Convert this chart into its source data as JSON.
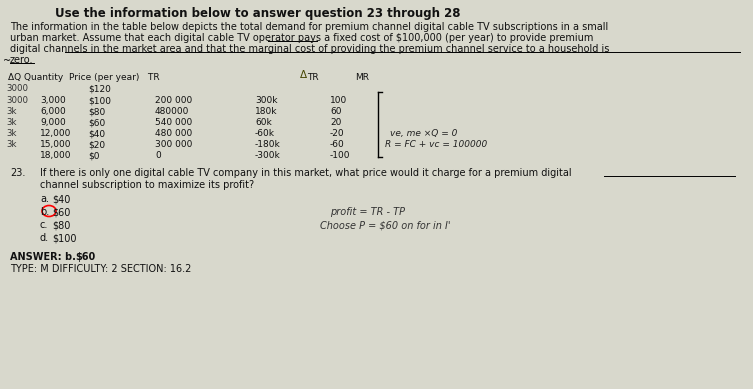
{
  "title": "Use the information below to answer question 23 through 28",
  "para1": "The information in the table below depicts the total demand for premium channel digital cable TV subscriptions in a small",
  "para2": "urban market. Assume that each digital cable TV operator pays a fixed cost of $100,000 (per year) to provide premium",
  "para3": "digital channels in the market area and that the marginal cost of providing the premium channel service to a household is",
  "para4": "zero.",
  "bg_color": "#d8d8cc",
  "fs_title": 8.5,
  "fs_body": 7.0,
  "fs_table": 6.5,
  "fs_hand": 6.0
}
